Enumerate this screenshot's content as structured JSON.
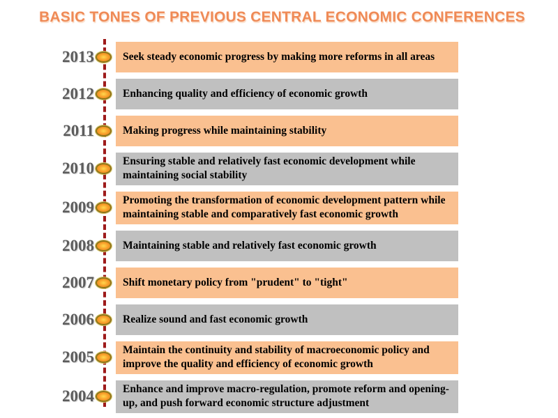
{
  "title": "BASIC TONES OF PREVIOUS CENTRAL ECONOMIC CONFERENCES",
  "colors": {
    "title": "#EF8A56",
    "orange_bar": "#FAC090",
    "gray_bar": "#C0C0C0",
    "year_label": "#5C5C5C",
    "timeline_line": "#9E1B1B",
    "marker_fill": "#F79A28",
    "marker_center": "#FFD84D",
    "marker_border": "#8E7618",
    "bar_text": "#000000"
  },
  "timeline": {
    "rows": [
      {
        "year": "2013",
        "tone": "orange",
        "text": "Seek steady economic progress by making more reforms in all areas"
      },
      {
        "year": "2012",
        "tone": "gray",
        "text": "Enhancing quality and efficiency of economic growth"
      },
      {
        "year": "2011",
        "tone": "orange",
        "text": "Making progress while maintaining stability"
      },
      {
        "year": "2010",
        "tone": "gray",
        "text": "Ensuring stable and relatively fast economic development while maintaining social stability"
      },
      {
        "year": "2009",
        "tone": "orange",
        "text": "Promoting the transformation of economic development pattern while maintaining stable and comparatively fast economic growth"
      },
      {
        "year": "2008",
        "tone": "gray",
        "text": "Maintaining stable and relatively fast economic growth"
      },
      {
        "year": "2007",
        "tone": "orange",
        "text": "Shift monetary policy from \"prudent\" to \"tight\""
      },
      {
        "year": "2006",
        "tone": "gray",
        "text": "Realize sound and fast economic growth"
      },
      {
        "year": "2005",
        "tone": "orange",
        "text": "Maintain the continuity and stability of macroeconomic policy and improve the quality and efficiency of economic growth"
      },
      {
        "year": "2004",
        "tone": "gray",
        "text": "Enhance and improve macro-regulation, promote reform and opening-up, and push forward economic structure adjustment"
      }
    ]
  }
}
